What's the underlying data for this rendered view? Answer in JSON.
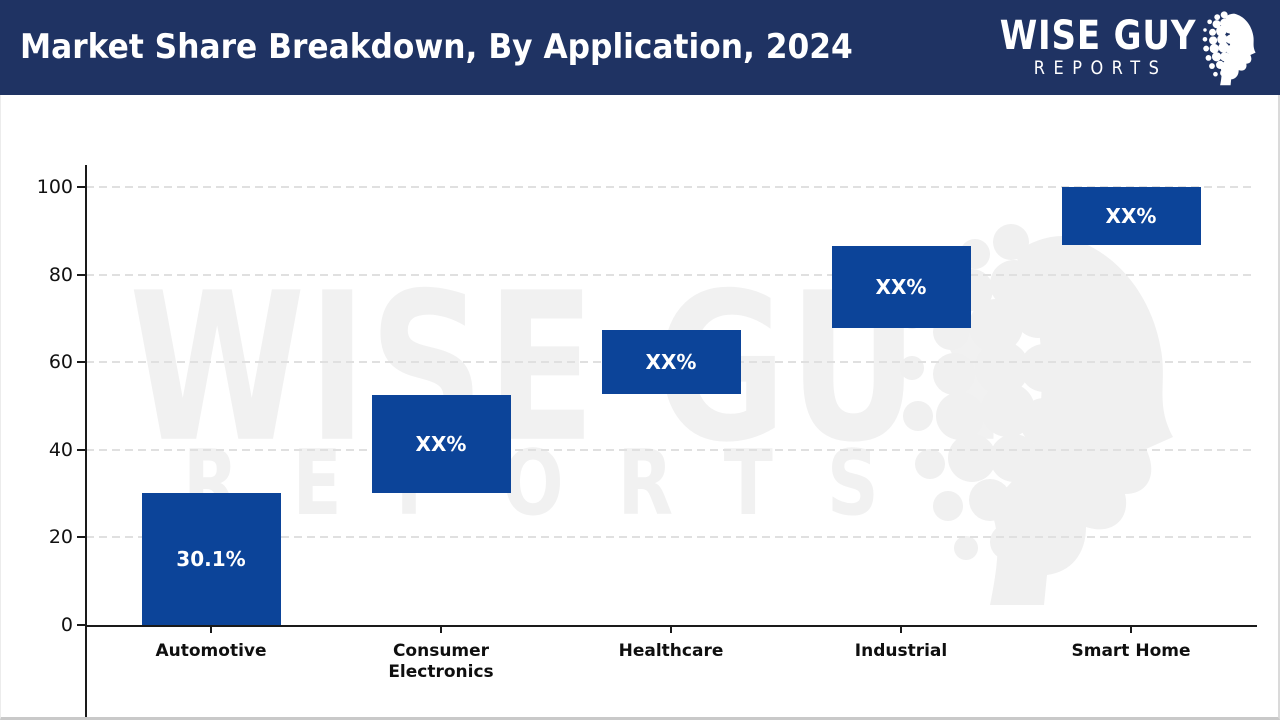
{
  "header": {
    "title": "Market Share Breakdown, By Application, 2024",
    "bg_color": "#1f3363",
    "logo": {
      "line1": "WISE GUY",
      "line2": "REPORTS"
    }
  },
  "chart_data": {
    "type": "bar",
    "variant": "floating-waterfall",
    "title": "Market Share Breakdown, By Application, 2024",
    "categories": [
      "Automotive",
      "Consumer Electronics",
      "Healthcare",
      "Industrial",
      "Smart Home"
    ],
    "segments": [
      {
        "category": "Automotive",
        "start": 0,
        "end": 30.1,
        "label": "30.1%"
      },
      {
        "category": "Consumer Electronics",
        "start": 30.1,
        "end": 52.5,
        "label": "XX%"
      },
      {
        "category": "Healthcare",
        "start": 52.7,
        "end": 67.4,
        "label": "XX%"
      },
      {
        "category": "Industrial",
        "start": 67.8,
        "end": 86.5,
        "label": "XX%"
      },
      {
        "category": "Smart Home",
        "start": 86.8,
        "end": 100,
        "label": "XX%"
      }
    ],
    "ylim": [
      0,
      100
    ],
    "yticks": [
      0,
      20,
      40,
      60,
      80,
      100
    ],
    "xlabel": "",
    "ylabel": "",
    "grid": "horizontal-dashed",
    "legend": "none",
    "bar_color": "#0c4499",
    "bar_label_color": "#ffffff",
    "axis_color": "#1a1a1a",
    "watermark": {
      "line1": "WISE GUY",
      "line2": "REPORTS"
    }
  }
}
